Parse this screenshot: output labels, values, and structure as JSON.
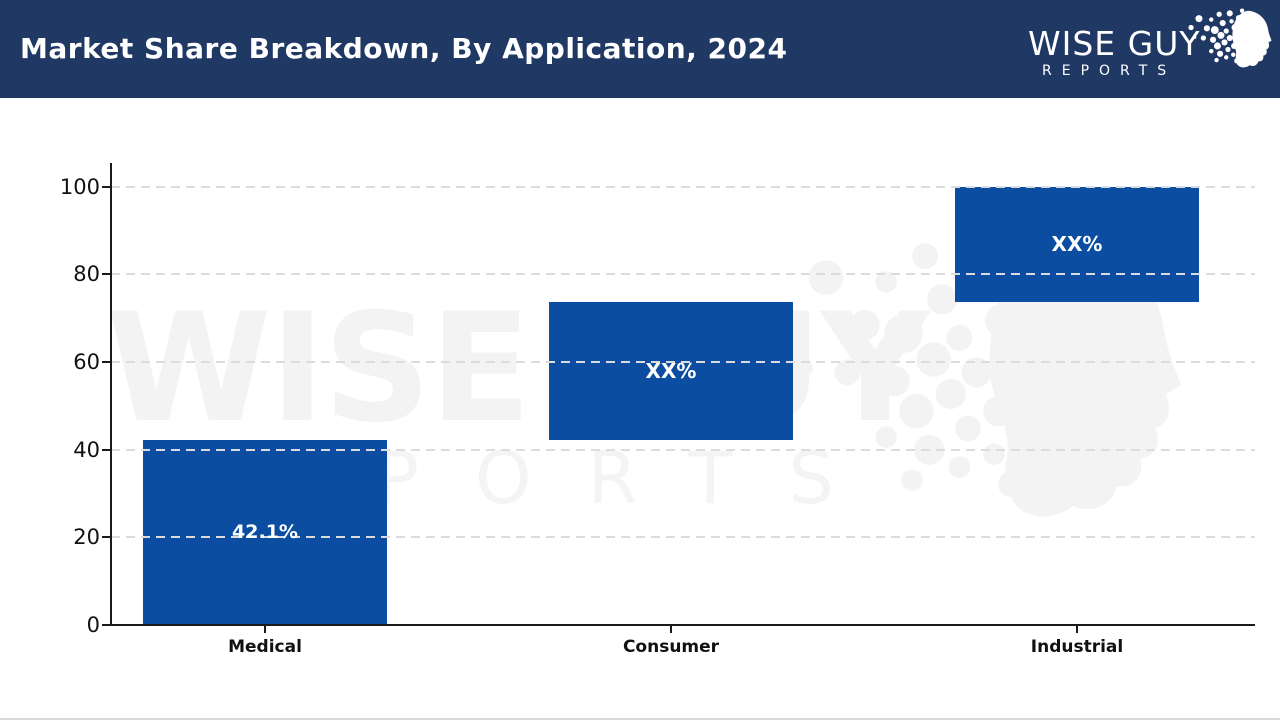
{
  "header": {
    "title": "Market Share Breakdown, By Application, 2024",
    "logo": {
      "line1": "WISE GUY",
      "line2": "REPORTS"
    }
  },
  "watermark": {
    "line1": "WISE GUY",
    "line2": "REPORTS"
  },
  "chart_data": {
    "type": "bar",
    "subtype": "waterfall",
    "title": "Market Share Breakdown, By Application, 2024",
    "categories": [
      "Medical",
      "Consumer",
      "Industrial"
    ],
    "series": [
      {
        "name": "Market Share (%)",
        "segments": [
          {
            "category": "Medical",
            "start": 0,
            "end": 42.1,
            "label": "42.1%"
          },
          {
            "category": "Consumer",
            "start": 42.1,
            "end": 73.7,
            "label": "XX%"
          },
          {
            "category": "Industrial",
            "start": 73.7,
            "end": 100,
            "label": "XX%"
          }
        ]
      }
    ],
    "yticks": [
      0,
      20,
      40,
      60,
      80,
      100
    ],
    "ylim": [
      0,
      105
    ],
    "xlabel": "",
    "ylabel": "",
    "grid": "horizontal-dashed",
    "legend": "none",
    "colors": {
      "bar": "#0b4da1",
      "grid": "#dcdcdc",
      "bar_label": "#ffffff",
      "axis": "#1a1a1a",
      "header_bg": "#1f3864",
      "watermark": "#f3f3f3"
    }
  }
}
